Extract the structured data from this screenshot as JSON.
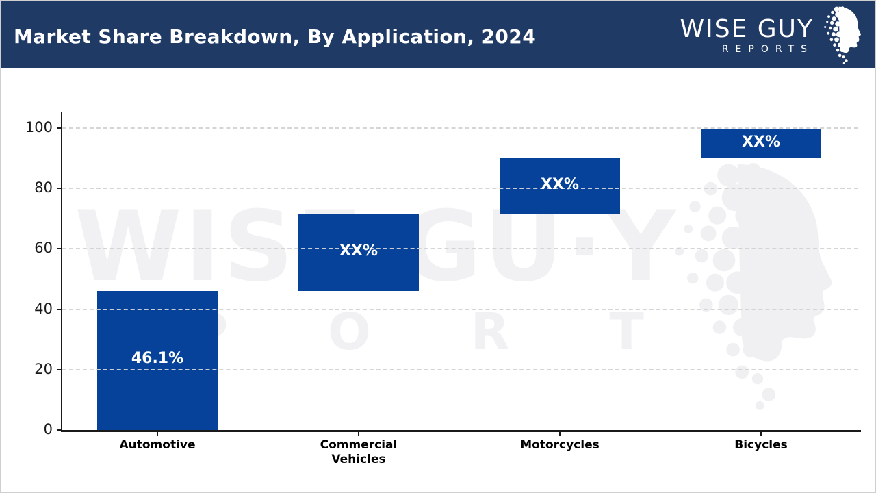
{
  "header": {
    "title": "Market Share Breakdown, By Application, 2024",
    "bg_color": "#203a66",
    "logo": {
      "line1": "WISE GUY",
      "line2": "REPORTS"
    }
  },
  "watermark": {
    "line1": "WISE GU·Y",
    "line2": "P O R T S"
  },
  "chart_data": {
    "type": "bar",
    "subtype": "waterfall",
    "title": "Market Share Breakdown, By Application, 2024",
    "categories": [
      "Automotive",
      "Commercial Vehicles",
      "Motorcycles",
      "Bicycles"
    ],
    "segments": [
      {
        "category": "Automotive",
        "start": 0,
        "end": 46.1,
        "label": "46.1%"
      },
      {
        "category": "Commercial Vehicles",
        "start": 46.1,
        "end": 71.4,
        "label": "XX%"
      },
      {
        "category": "Motorcycles",
        "start": 71.4,
        "end": 90.1,
        "label": "XX%"
      },
      {
        "category": "Bicycles",
        "start": 90.1,
        "end": 99.5,
        "label": "XX%"
      }
    ],
    "xlabel": "",
    "ylabel": "",
    "ylim": [
      0,
      105
    ],
    "yticks": [
      0,
      20,
      40,
      60,
      80,
      100
    ],
    "grid": "horizontal-dashed",
    "legend": "none",
    "bar_color": "#06429a",
    "bar_label_color": "#ffffff",
    "gridline_color": "#d3d3d3",
    "axis_color": "#1a1a1a"
  }
}
